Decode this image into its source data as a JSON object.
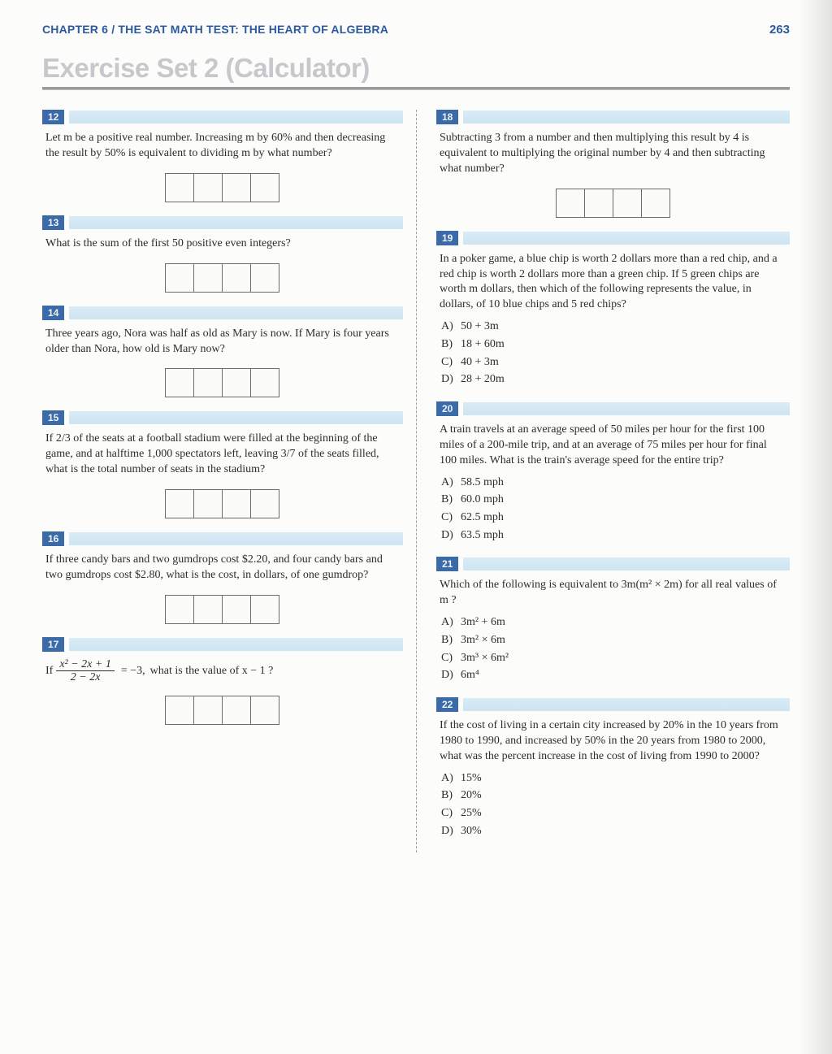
{
  "header": {
    "chapter_line": "CHAPTER 6 / THE SAT MATH TEST: THE HEART OF ALGEBRA",
    "page_number": "263",
    "section_title": "Exercise Set 2 (Calculator)"
  },
  "colors": {
    "heading_blue": "#2c5aa0",
    "title_grey": "#c7c8cb",
    "badge_bg": "#3a6aa8",
    "stripe_top": "#d9ecf6",
    "stripe_bottom": "#cde4f1",
    "rule_grey": "#9a9a9a",
    "cell_border": "#6b6b6b"
  },
  "left": [
    {
      "num": "12",
      "text": "Let m be a positive real number. Increasing m by 60% and then decreasing the result by 50% is equivalent to dividing m by what number?",
      "grid_in": true
    },
    {
      "num": "13",
      "text": "What is the sum of the first 50 positive even integers?",
      "grid_in": true
    },
    {
      "num": "14",
      "text": "Three years ago, Nora was half as old as Mary is now. If Mary is four years older than Nora, how old is Mary now?",
      "grid_in": true
    },
    {
      "num": "15",
      "text": "If 2/3 of the seats at a football stadium were filled at the beginning of the game, and at halftime 1,000 spectators left, leaving 3/7 of the seats filled, what is the total number of seats in the stadium?",
      "grid_in": true
    },
    {
      "num": "16",
      "text": "If three candy bars and two gumdrops cost $2.20, and four candy bars and two gumdrops cost $2.80, what is the cost, in dollars, of one gumdrop?",
      "grid_in": true
    },
    {
      "num": "17",
      "equation": {
        "lead": "If",
        "numerator": "x² − 2x + 1",
        "denominator": "2 − 2x",
        "rhs": "= −3,",
        "tail": "what is the value of x − 1 ?"
      },
      "grid_in": true
    }
  ],
  "right": [
    {
      "num": "18",
      "text": "Subtracting 3 from a number and then multiplying this result by 4 is equivalent to multiplying the original number by 4 and then subtracting what number?",
      "grid_in": true
    },
    {
      "num": "19",
      "text": "In a poker game, a blue chip is worth 2 dollars more than a red chip, and a red chip is worth 2 dollars more than a green chip. If 5 green chips are worth m dollars, then which of the following represents the value, in dollars, of 10 blue chips and 5 red chips?",
      "choices": [
        {
          "letter": "A)",
          "text": "50 + 3m"
        },
        {
          "letter": "B)",
          "text": "18 + 60m"
        },
        {
          "letter": "C)",
          "text": "40 + 3m"
        },
        {
          "letter": "D)",
          "text": "28 + 20m"
        }
      ]
    },
    {
      "num": "20",
      "text": "A train travels at an average speed of 50 miles per hour for the first 100 miles of a 200-mile trip, and at an average of 75 miles per hour for final 100 miles. What is the train's average speed for the entire trip?",
      "choices": [
        {
          "letter": "A)",
          "text": "58.5 mph"
        },
        {
          "letter": "B)",
          "text": "60.0 mph"
        },
        {
          "letter": "C)",
          "text": "62.5 mph"
        },
        {
          "letter": "D)",
          "text": "63.5 mph"
        }
      ]
    },
    {
      "num": "21",
      "text": "Which of the following is equivalent to 3m(m² × 2m) for all real values of m ?",
      "choices": [
        {
          "letter": "A)",
          "text": "3m² + 6m"
        },
        {
          "letter": "B)",
          "text": "3m² × 6m"
        },
        {
          "letter": "C)",
          "text": "3m³ × 6m²"
        },
        {
          "letter": "D)",
          "text": "6m⁴"
        }
      ]
    },
    {
      "num": "22",
      "text": "If the cost of living in a certain city increased by 20% in the 10 years from 1980 to 1990, and increased by 50% in the 20 years from 1980 to 2000, what was the percent increase in the cost of living from 1990 to 2000?",
      "choices": [
        {
          "letter": "A)",
          "text": "15%"
        },
        {
          "letter": "B)",
          "text": "20%"
        },
        {
          "letter": "C)",
          "text": "25%"
        },
        {
          "letter": "D)",
          "text": "30%"
        }
      ]
    }
  ]
}
